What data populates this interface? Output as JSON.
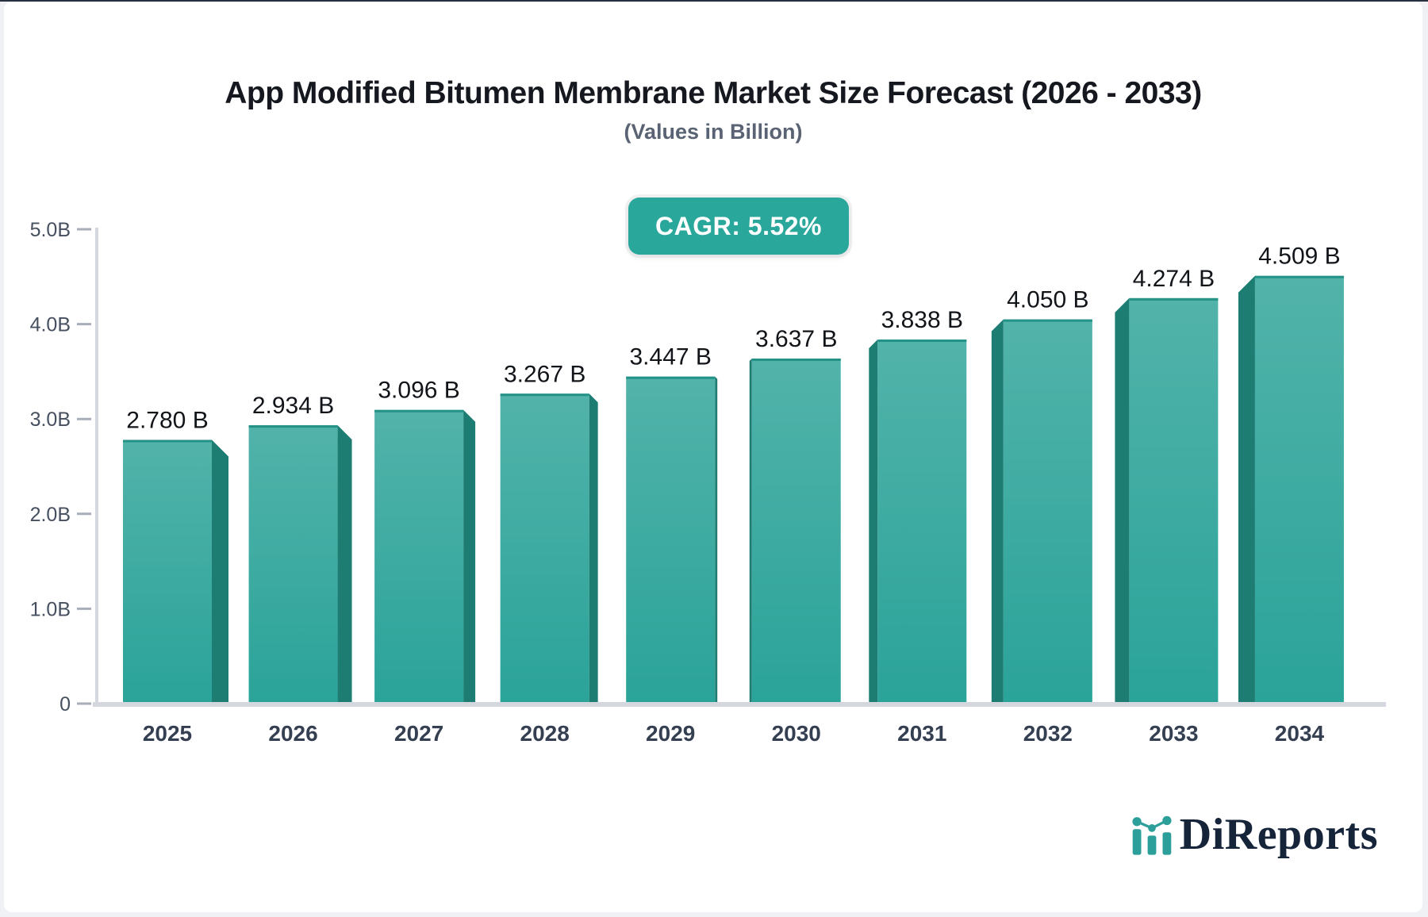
{
  "page": {
    "title": "App Modified Bitumen Membrane Market Size Forecast (2026 - 2033)",
    "subtitle": "(Values in Billion)",
    "cagr_label": "CAGR: 5.52%",
    "brand_name": "DiReports"
  },
  "colors": {
    "accent_teal": "#2aa79b",
    "bar_face_top": "#52b3aa",
    "bar_face_bottom": "#2aa399",
    "bar_face_edge": "#249287",
    "bar_side_dark": "#1e7d73",
    "axis_line": "#d4d7dd",
    "tick_dash": "#a7aeb9",
    "tick_text": "#46505f",
    "year_text": "#353f52",
    "value_text": "#111419",
    "brand_navy": "#16243a"
  },
  "chart_data": {
    "type": "bar",
    "title": "App Modified Bitumen Membrane Market Size Forecast (2026 - 2033)",
    "subtitle": "(Values in Billion)",
    "annotation": "CAGR: 5.52%",
    "categories": [
      "2025",
      "2026",
      "2027",
      "2028",
      "2029",
      "2030",
      "2031",
      "2032",
      "2033",
      "2034"
    ],
    "values": [
      2.78,
      2.934,
      3.096,
      3.267,
      3.447,
      3.637,
      3.838,
      4.05,
      4.274,
      4.509
    ],
    "value_labels": [
      "2.780 B",
      "2.934 B",
      "3.096 B",
      "3.267 B",
      "3.447 B",
      "3.637 B",
      "3.838 B",
      "4.050 B",
      "4.274 B",
      "4.509 B"
    ],
    "xlabel": "",
    "ylabel": "",
    "ylim": [
      0,
      5
    ],
    "yticks": [
      {
        "value": 0,
        "label": "0"
      },
      {
        "value": 1,
        "label": "1.0B"
      },
      {
        "value": 2,
        "label": "2.0B"
      },
      {
        "value": 3,
        "label": "3.0B"
      },
      {
        "value": 4,
        "label": "4.0B"
      },
      {
        "value": 5,
        "label": "5.0B"
      }
    ],
    "grid": false,
    "legend": null
  }
}
